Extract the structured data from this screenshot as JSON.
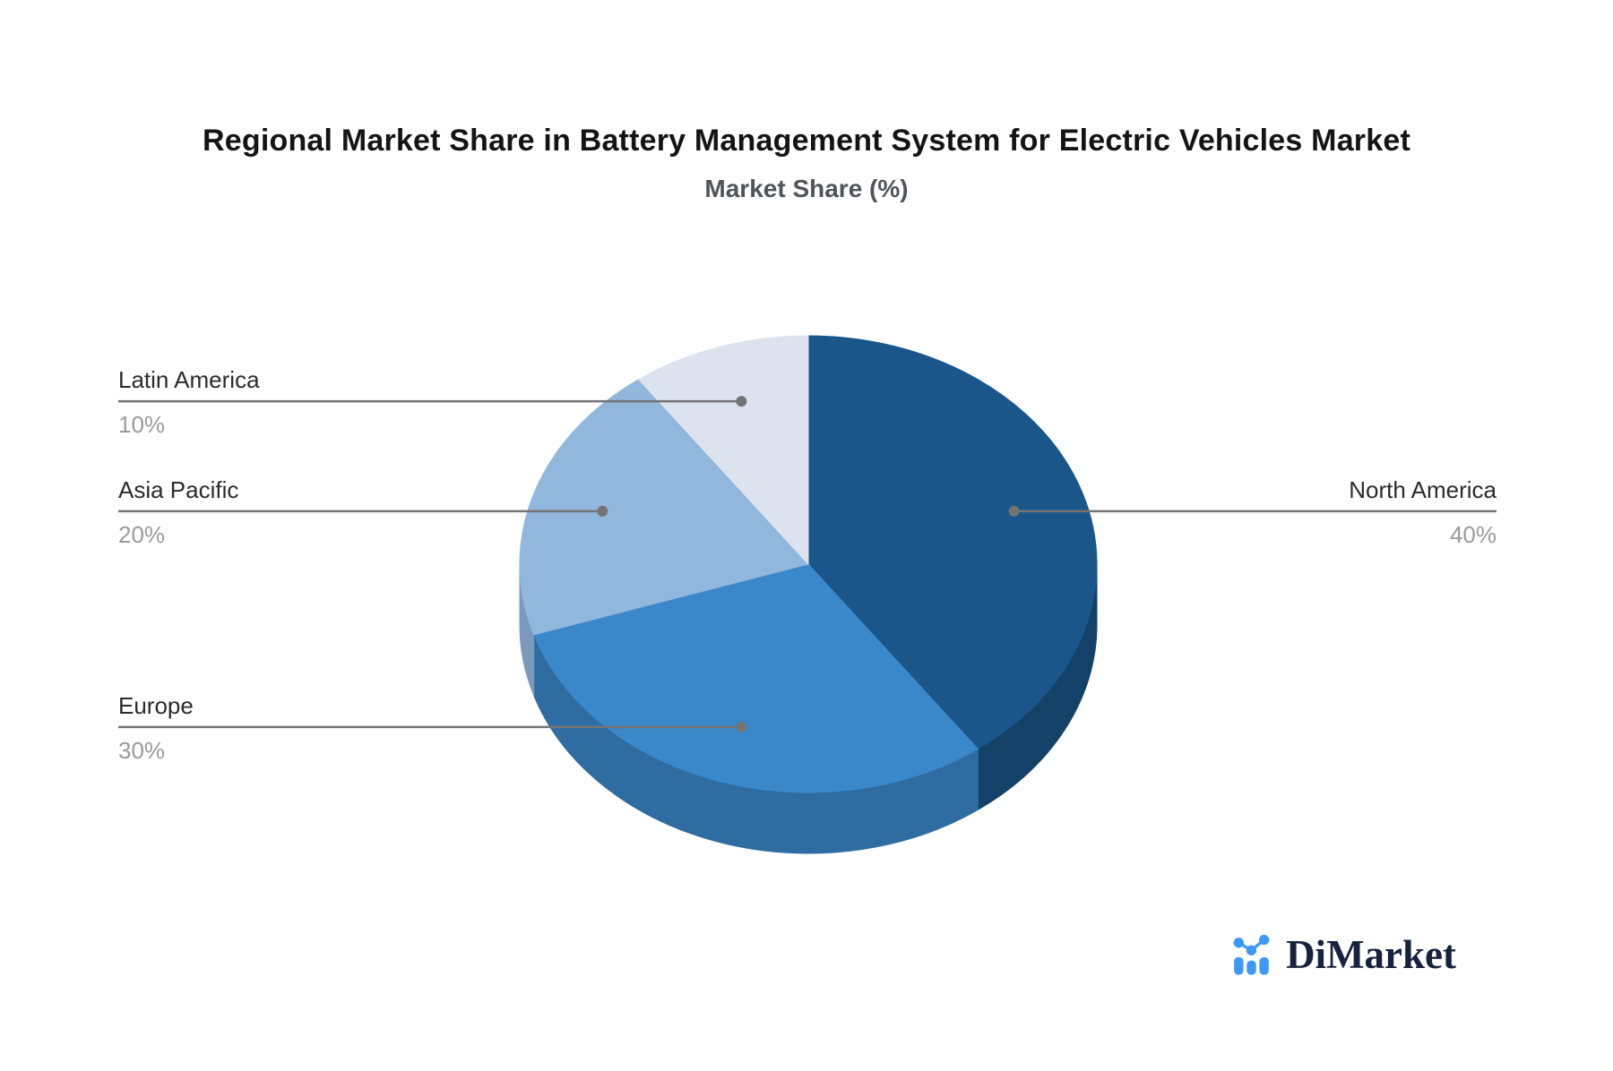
{
  "title": "Regional Market Share in Battery Management System for Electric Vehicles Market",
  "subtitle": "Market Share (%)",
  "logo": {
    "text": "DiMarket",
    "icon": "bar-chart-trend-icon",
    "icon_color": "#3E98F7",
    "text_color": "#17233D"
  },
  "style": {
    "label_color": "#2B2B2B",
    "percent_color": "#9B9B9B",
    "leader_line_color": "#747474",
    "background": "#FFFFFF"
  },
  "chart_data": {
    "type": "pie",
    "style": "3d",
    "title": "Regional Market Share in Battery Management System for Electric Vehicles Market",
    "subtitle": "Market Share (%)",
    "unit": "%",
    "direction": "clockwise",
    "start_angle_deg_from_top": 0,
    "legend_position": "leader-line labels",
    "slices": [
      {
        "label": "North America",
        "value": 40,
        "pct_label": "40%",
        "color": "#1B568B",
        "side_color": "#144168",
        "label_side": "right"
      },
      {
        "label": "Europe",
        "value": 30,
        "pct_label": "30%",
        "color": "#3A87C9",
        "side_color": "#2E6CA1",
        "label_side": "left"
      },
      {
        "label": "Asia Pacific",
        "value": 20,
        "pct_label": "20%",
        "color": "#92B7DC",
        "side_color": "#7B9ABB",
        "label_side": "left"
      },
      {
        "label": "Latin America",
        "value": 10,
        "pct_label": "10%",
        "color": "#DDE3EE",
        "side_color": "#C3CCDC",
        "label_side": "left"
      }
    ]
  }
}
